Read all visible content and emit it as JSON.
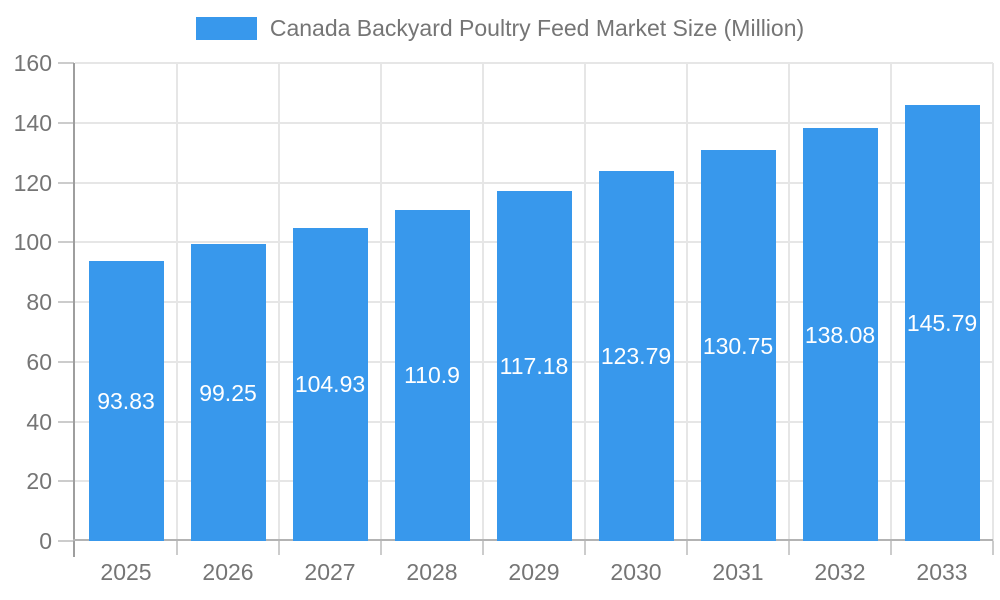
{
  "legend": {
    "label": "Canada Backyard Poultry Feed Market Size (Million)"
  },
  "chart_data": {
    "type": "bar",
    "title": "Canada Backyard Poultry Feed Market Size (Million)",
    "categories": [
      "2025",
      "2026",
      "2027",
      "2028",
      "2029",
      "2030",
      "2031",
      "2032",
      "2033"
    ],
    "values": [
      93.83,
      99.25,
      104.93,
      110.9,
      117.18,
      123.79,
      130.75,
      138.08,
      145.79
    ],
    "value_labels": [
      "93.83",
      "99.25",
      "104.93",
      "110.9",
      "117.18",
      "123.79",
      "130.75",
      "138.08",
      "145.79"
    ],
    "xlabel": "",
    "ylabel": "",
    "ylim": [
      0,
      160
    ],
    "yticks": [
      0,
      20,
      40,
      60,
      80,
      100,
      120,
      140,
      160
    ],
    "grid": true,
    "legend_position": "top-center",
    "colors": {
      "bar": "#3898ec",
      "bar_value_text": "#ffffff",
      "axis_text": "#757575",
      "gridline": "#e6e6e6",
      "tick": "#cccccc",
      "y_axis_line": "#9e9e9e",
      "baseline": "#b3b3b3",
      "background": "#ffffff"
    }
  }
}
